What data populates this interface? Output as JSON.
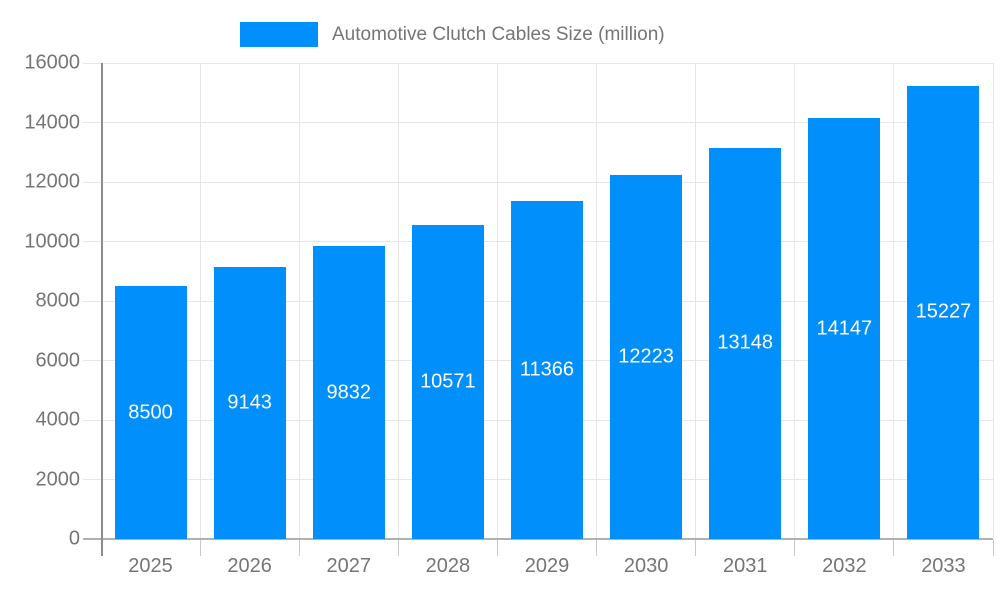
{
  "legend": {
    "label": "Automotive Clutch Cables Size (million)",
    "swatch_color": "#008ffb"
  },
  "chart_data": {
    "type": "bar",
    "title": "Automotive Clutch Cables Size (million)",
    "categories": [
      "2025",
      "2026",
      "2027",
      "2028",
      "2029",
      "2030",
      "2031",
      "2032",
      "2033"
    ],
    "values": [
      8500,
      9143,
      9832,
      10571,
      11366,
      12223,
      13148,
      14147,
      15227
    ],
    "series_name": "Automotive Clutch Cables Size (million)",
    "xlabel": "",
    "ylabel": "",
    "ylim": [
      0,
      16000
    ],
    "yticks": [
      0,
      2000,
      4000,
      6000,
      8000,
      10000,
      12000,
      14000,
      16000
    ],
    "grid": true,
    "legend_position": "top",
    "value_labels": "inside-center",
    "colors": {
      "bar": "#008ffb",
      "value_label": "#ffffff",
      "axis_label": "#757575",
      "gridline": "#e6e6e6",
      "axis_line": "#8c8c8c",
      "baseline": "#b0b0b0"
    }
  }
}
